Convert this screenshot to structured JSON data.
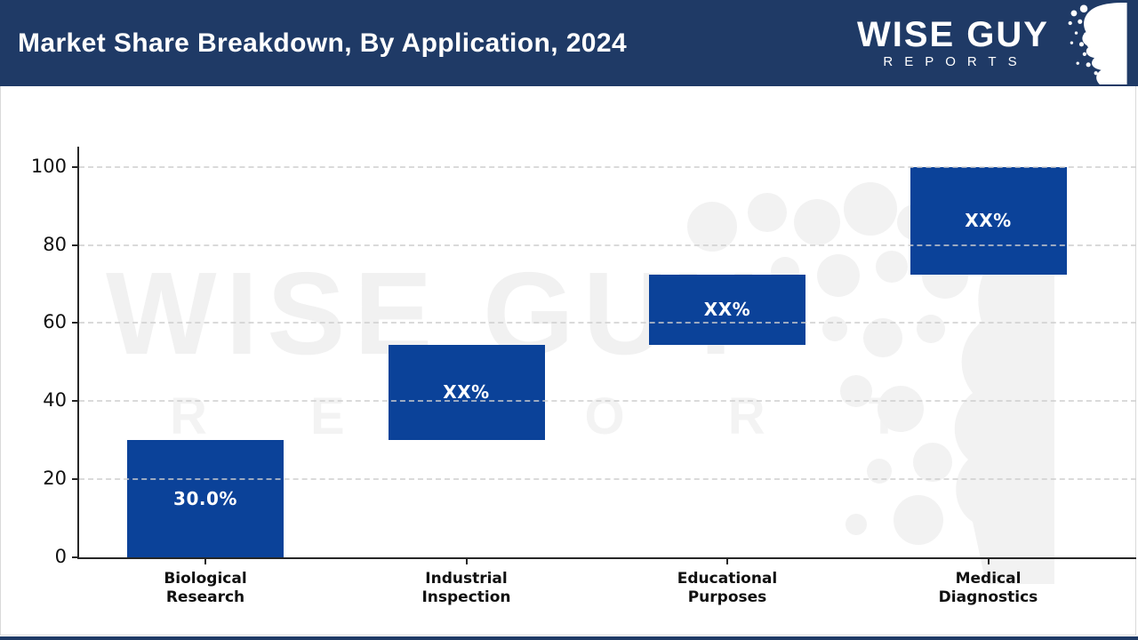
{
  "header": {
    "title": "Market Share Breakdown, By Application, 2024",
    "bg_color": "#1f3a66",
    "logo": {
      "line1": "WISE GUY",
      "line2": "REPORTS"
    }
  },
  "watermark": {
    "line1": "WISE GUY",
    "line2": "REPORTS"
  },
  "chart_data": {
    "type": "bar",
    "subtype": "floating-waterfall",
    "title": "Market Share Breakdown, By Application, 2024",
    "categories": [
      [
        "Biological",
        "Research"
      ],
      [
        "Industrial",
        "Inspection"
      ],
      [
        "Educational",
        "Purposes"
      ],
      [
        "Medical",
        "Diagnostics"
      ]
    ],
    "segments": [
      {
        "start": 0,
        "end": 30,
        "label": "30.0%"
      },
      {
        "start": 30,
        "end": 54.5,
        "label": "XX%"
      },
      {
        "start": 54.5,
        "end": 72.5,
        "label": "XX%"
      },
      {
        "start": 72.5,
        "end": 100,
        "label": "XX%"
      }
    ],
    "ylim": [
      0,
      100
    ],
    "yticks": [
      0,
      20,
      40,
      60,
      80,
      100
    ],
    "xlabel": "",
    "ylabel": "",
    "legend": null,
    "grid": "horizontal-dashed",
    "colors": {
      "bar": "#0b4299",
      "axis": "#262626",
      "grid": "#d9d9d9",
      "tick_text": "#111111",
      "bar_label_text": "#ffffff"
    }
  }
}
